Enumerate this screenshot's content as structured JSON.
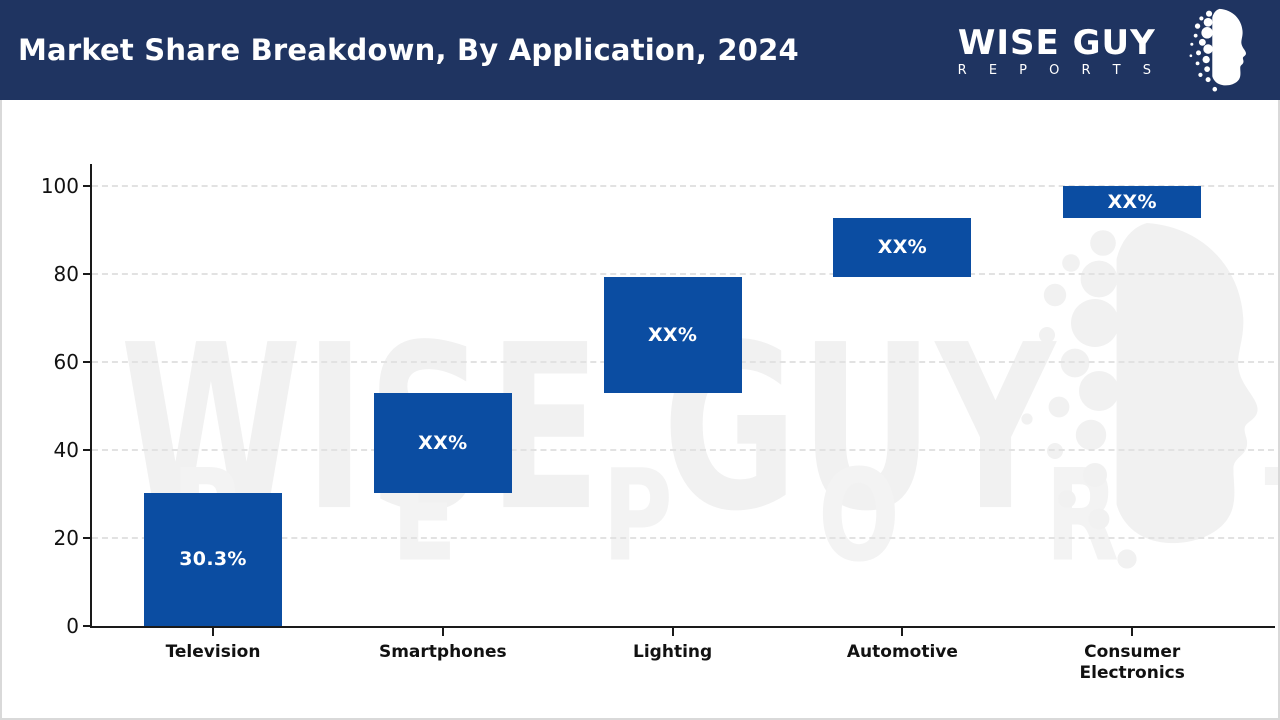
{
  "header": {
    "title": "Market Share Breakdown, By Application, 2024",
    "bg_color": "#1f3461",
    "logo": {
      "name_line": "WISE GUY",
      "sub_line": "R E P O R T S"
    }
  },
  "watermark": {
    "line1": "WISE GUY",
    "line2": "R E P O R T S"
  },
  "chart_data": {
    "type": "bar",
    "subtype": "floating-segment-waterfall",
    "title": "Market Share Breakdown, By Application, 2024",
    "categories": [
      "Television",
      "Smartphones",
      "Lighting",
      "Automotive",
      "Consumer Electronics"
    ],
    "series": [
      {
        "name": "Market Share",
        "segments": [
          {
            "category": "Television",
            "start": 0,
            "end": 30.3,
            "label": "30.3%"
          },
          {
            "category": "Smartphones",
            "start": 30.3,
            "end": 53.0,
            "label": "XX%"
          },
          {
            "category": "Lighting",
            "start": 53.0,
            "end": 79.4,
            "label": "XX%"
          },
          {
            "category": "Automotive",
            "start": 79.4,
            "end": 92.8,
            "label": "XX%"
          },
          {
            "category": "Consumer Electronics",
            "start": 92.8,
            "end": 99.9,
            "label": "XX%"
          }
        ]
      }
    ],
    "xlabel": "",
    "ylabel": "",
    "ylim": [
      0,
      100
    ],
    "yticks": [
      0,
      20,
      40,
      60,
      80,
      100
    ],
    "grid": {
      "horizontal": true,
      "style": "dashed",
      "color": "#e2e2e2"
    },
    "legend_position": "none",
    "bar_color": "#0b4da2",
    "bar_label_color": "#ffffff",
    "axis_color": "#1a1a1a"
  }
}
